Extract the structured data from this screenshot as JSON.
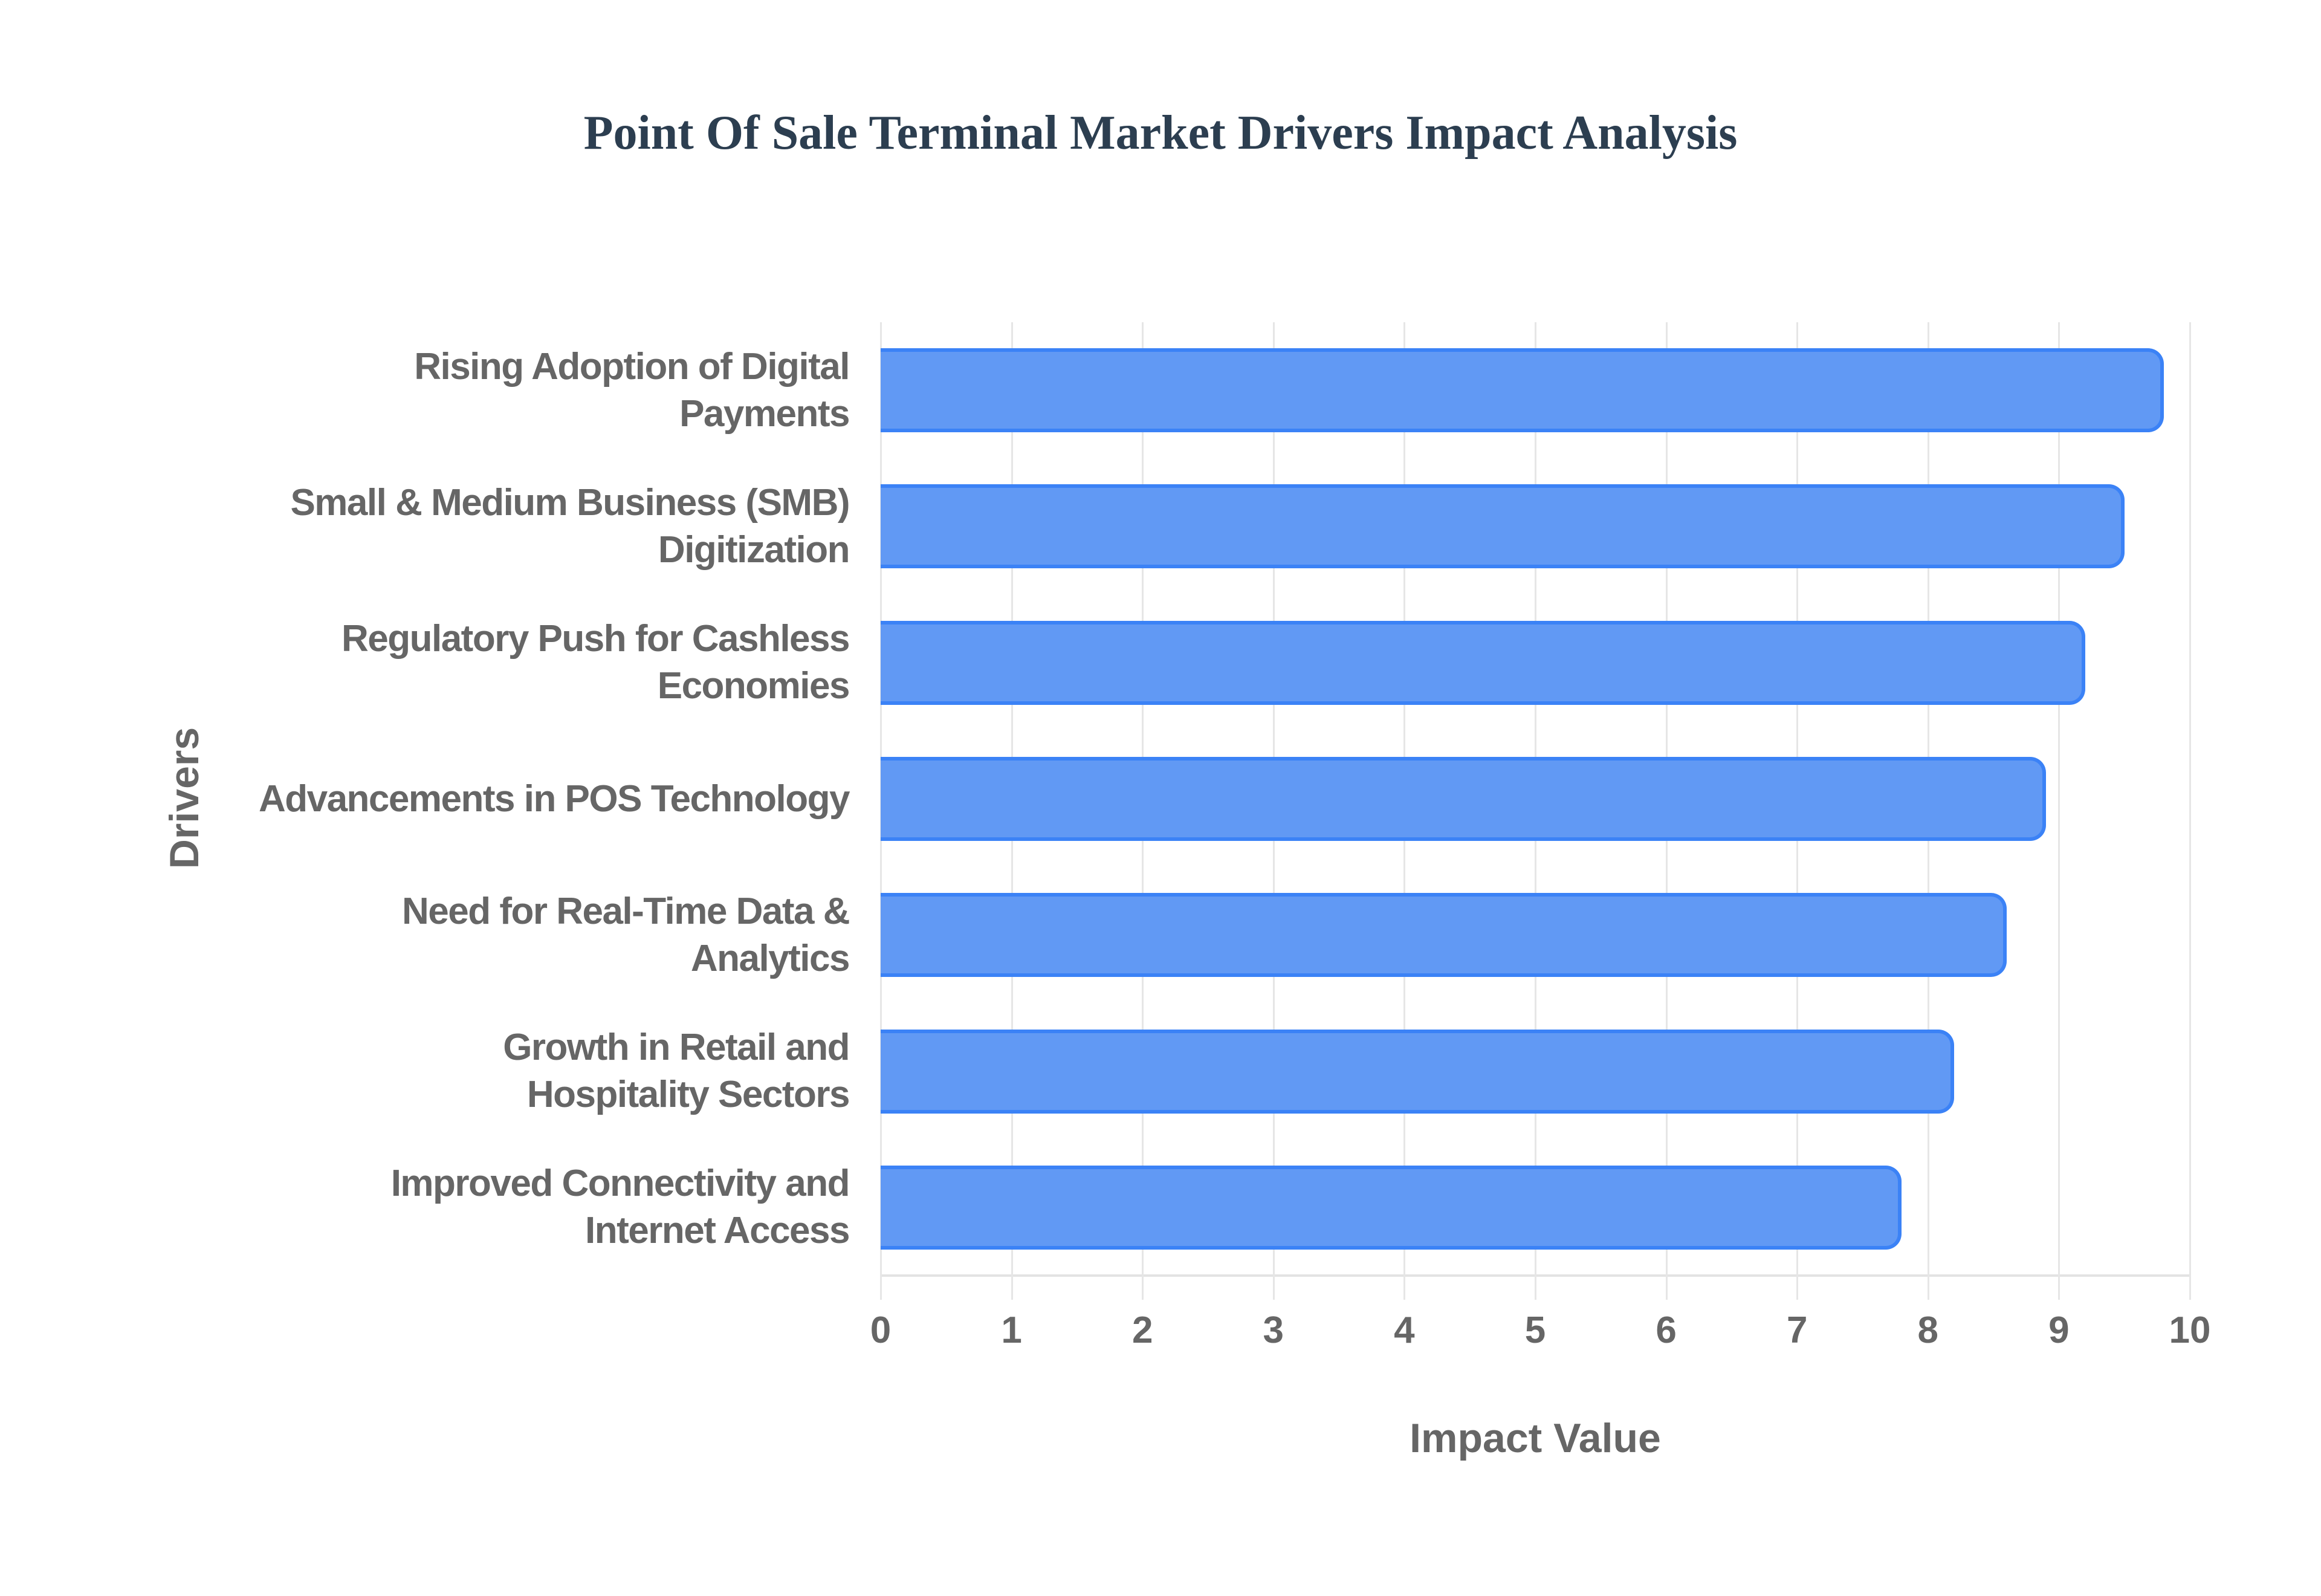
{
  "title": "Point Of Sale Terminal Market Drivers Impact Analysis",
  "colors": {
    "bar_fill": "#6199f4",
    "bar_border": "#3b82f6",
    "title": "#2c3e50",
    "axis_text": "#666666",
    "grid": "#e6e6e6"
  },
  "chart_data": {
    "type": "bar",
    "orientation": "horizontal",
    "title": "Point Of Sale Terminal Market Drivers Impact Analysis",
    "xlabel": "Impact Value",
    "ylabel": "Drivers",
    "xlim": [
      0,
      10
    ],
    "x_ticks": [
      "0",
      "1",
      "2",
      "3",
      "4",
      "5",
      "6",
      "7",
      "8",
      "9",
      "10"
    ],
    "grid": true,
    "legend": "none",
    "categories": [
      "Rising Adoption of Digital Payments",
      "Small & Medium Business (SMB) Digitization",
      "Regulatory Push for Cashless Economies",
      "Advancements in POS Technology",
      "Need for Real-Time Data & Analytics",
      "Growth in Retail and Hospitality Sectors",
      "Improved Connectivity and Internet Access"
    ],
    "values": [
      9.8,
      9.5,
      9.2,
      8.9,
      8.6,
      8.2,
      7.8
    ]
  },
  "y_labels": [
    "Rising Adoption of Digital Payments",
    "Small & Medium Business (SMB) Digitization",
    "Regulatory Push for Cashless Economies",
    "Advancements in POS Technology",
    "Need for Real-Time Data & Analytics",
    "Growth in Retail and Hospitality Sectors",
    "Improved Connectivity and Internet Access"
  ],
  "x_ticks": [
    "0",
    "1",
    "2",
    "3",
    "4",
    "5",
    "6",
    "7",
    "8",
    "9",
    "10"
  ],
  "axis": {
    "x_title": "Impact Value",
    "y_title": "Drivers"
  }
}
